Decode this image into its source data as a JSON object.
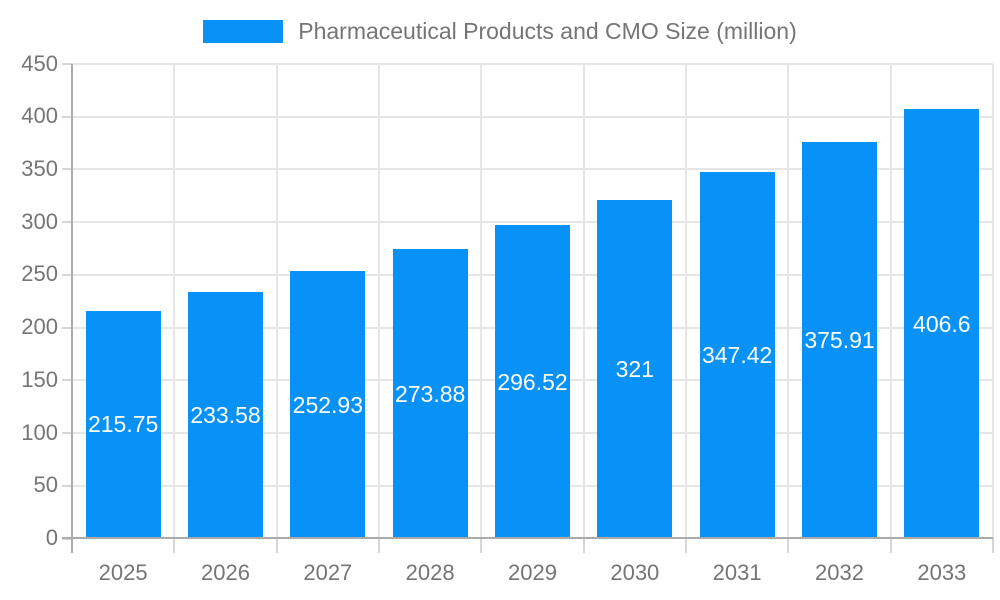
{
  "legend": {
    "label": "Pharmaceutical Products and CMO Size (million)"
  },
  "chart_data": {
    "type": "bar",
    "title": "Pharmaceutical Products and CMO Size (million)",
    "categories": [
      "2025",
      "2026",
      "2027",
      "2028",
      "2029",
      "2030",
      "2031",
      "2032",
      "2033"
    ],
    "values": [
      215.75,
      233.58,
      252.93,
      273.88,
      296.52,
      321,
      347.42,
      375.91,
      406.6
    ],
    "value_labels": [
      "215.75",
      "233.58",
      "252.93",
      "273.88",
      "296.52",
      "321",
      "347.42",
      "375.91",
      "406.6"
    ],
    "xlabel": "",
    "ylabel": "",
    "ylim": [
      0,
      450
    ],
    "yticks": [
      0,
      50,
      100,
      150,
      200,
      250,
      300,
      350,
      400,
      450
    ],
    "grid": true,
    "legend_position": "top",
    "colors": {
      "bar": "#0892f8",
      "bar_label": "#ffffff",
      "axis_text": "#757575",
      "legend_text": "#757575",
      "grid_line": "#e6e6e6",
      "axis_line": "#ababab",
      "tick_mark": "#d6d6d6",
      "background": "#ffffff"
    }
  }
}
